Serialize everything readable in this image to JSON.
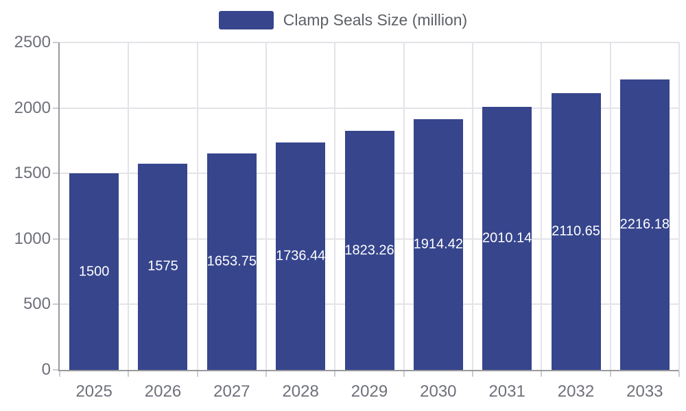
{
  "legend": {
    "label": "Clamp Seals Size (million)"
  },
  "colors": {
    "bar": "#36458c",
    "bar_label": "#ffffff",
    "axis_line": "#98989d",
    "grid_line": "#e3e3e8",
    "tick_line": "#ccccd0",
    "axis_text": "#6e7079",
    "legend_text": "#5c5f66",
    "background": "#ffffff"
  },
  "chart_data": {
    "type": "bar",
    "title": "",
    "series_name": "Clamp Seals Size (million)",
    "categories": [
      "2025",
      "2026",
      "2027",
      "2028",
      "2029",
      "2030",
      "2031",
      "2032",
      "2033"
    ],
    "values": [
      1500,
      1575,
      1653.75,
      1736.44,
      1823.26,
      1914.42,
      2010.14,
      2110.65,
      2216.18
    ],
    "value_labels": [
      "1500",
      "1575",
      "1653.75",
      "1736.44",
      "1823.26",
      "1914.42",
      "2010.14",
      "2110.65",
      "2216.18"
    ],
    "xlabel": "",
    "ylabel": "",
    "ylim": [
      0,
      2500
    ],
    "yticks": [
      0,
      500,
      1000,
      1500,
      2000,
      2500
    ],
    "grid": true,
    "legend_position": "top",
    "bar_label_position": "inside-center"
  }
}
